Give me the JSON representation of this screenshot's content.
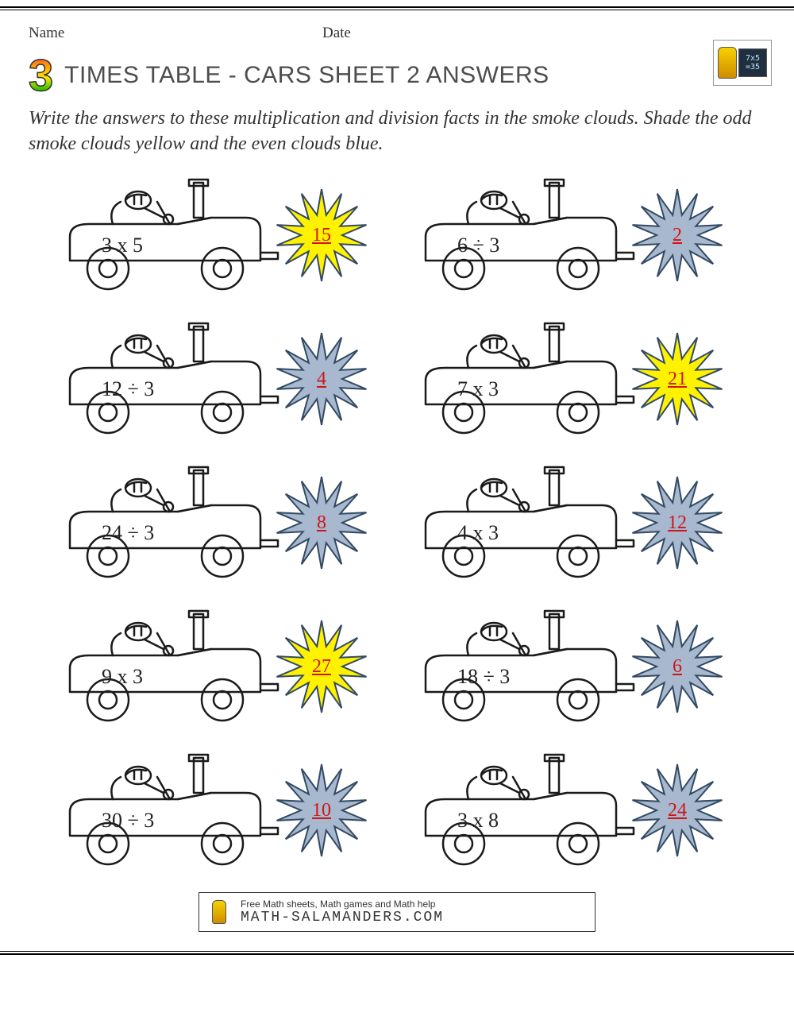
{
  "labels": {
    "name": "Name",
    "date": "Date"
  },
  "title": {
    "prefix": "3",
    "text": "TIMES TABLE - CARS SHEET 2 ANSWERS"
  },
  "instructions": "Write the answers to these multiplication and division facts in the smoke clouds. Shade the odd smoke clouds yellow and the even clouds blue.",
  "colors": {
    "odd_fill": "#fff200",
    "even_fill": "#a7b8cf",
    "burst_stroke": "#324a63",
    "answer_color": "#d01515",
    "car_stroke": "#1a1a1a",
    "text_color": "#333333"
  },
  "logo_chalk": "7x5\\n=35",
  "problems": [
    {
      "expr": "3 x 5",
      "answer": "15",
      "parity": "odd"
    },
    {
      "expr": "6 ÷ 3",
      "answer": "2",
      "parity": "even"
    },
    {
      "expr": "12 ÷ 3",
      "answer": "4",
      "parity": "even"
    },
    {
      "expr": "7 x 3",
      "answer": "21",
      "parity": "odd"
    },
    {
      "expr": "24 ÷ 3",
      "answer": "8",
      "parity": "even"
    },
    {
      "expr": "4 x 3",
      "answer": "12",
      "parity": "even"
    },
    {
      "expr": "9 x 3",
      "answer": "27",
      "parity": "odd"
    },
    {
      "expr": "18 ÷ 3",
      "answer": "6",
      "parity": "even"
    },
    {
      "expr": "30 ÷ 3",
      "answer": "10",
      "parity": "even"
    },
    {
      "expr": "3 x 8",
      "answer": "24",
      "parity": "even"
    }
  ],
  "footer": {
    "line1": "Free Math sheets, Math games and Math help",
    "line2": "MATH-SALAMANDERS.COM"
  }
}
